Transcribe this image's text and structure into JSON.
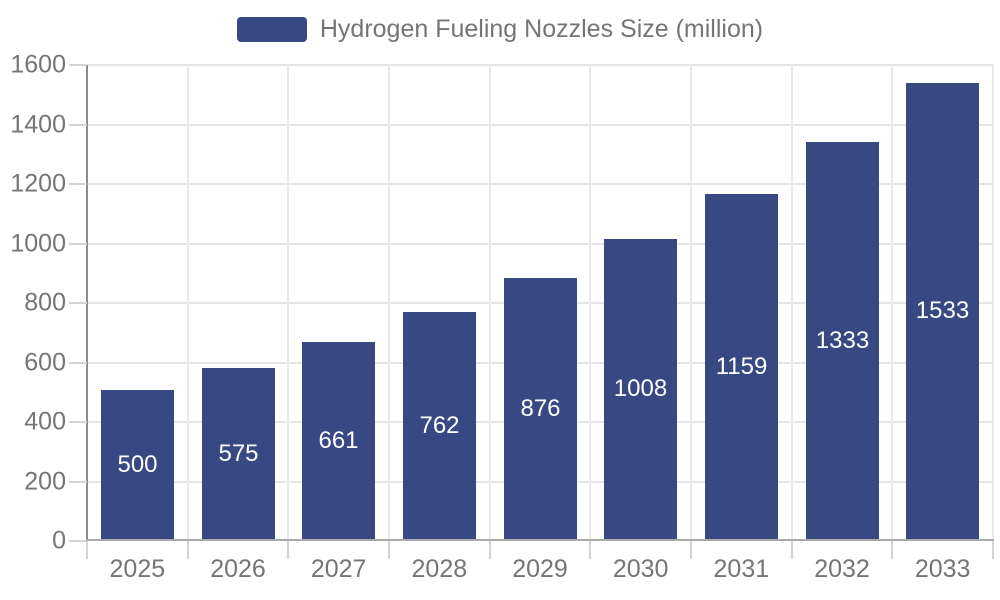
{
  "chart_data": {
    "type": "bar",
    "title": "",
    "legend": {
      "label": "Hydrogen Fueling Nozzles Size (million)",
      "position": "top-center"
    },
    "categories": [
      "2025",
      "2026",
      "2027",
      "2028",
      "2029",
      "2030",
      "2031",
      "2032",
      "2033"
    ],
    "series": [
      {
        "name": "Hydrogen Fueling Nozzles Size (million)",
        "values": [
          500,
          575,
          661,
          762,
          876,
          1008,
          1159,
          1333,
          1533
        ]
      }
    ],
    "value_labels_shown": true,
    "xlabel": "",
    "ylabel": "",
    "ylim": [
      0,
      1600
    ],
    "yticks": [
      0,
      200,
      400,
      600,
      800,
      1000,
      1200,
      1400,
      1600
    ],
    "grid": true,
    "colors": {
      "bar": "#384882",
      "bar_value_label": "#ffffff",
      "axis_text": "#757575",
      "legend_text": "#757575",
      "h_gridline": "#e5e5e5",
      "v_gridline": "#e9e9e9",
      "x_axis_line": "#a9a9a9",
      "y_axis_line": "#8c8c8c",
      "tick_mark": "#d4d4d4",
      "background": "#ffffff"
    }
  }
}
